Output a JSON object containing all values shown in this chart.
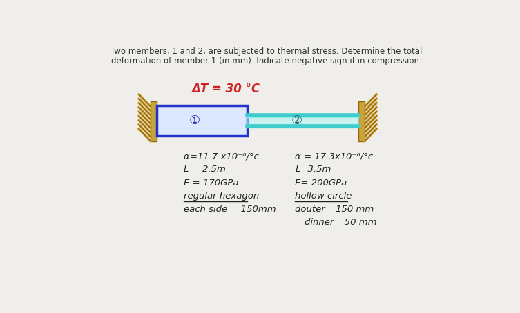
{
  "title_line1": "Two members, 1 and 2, are subjected to thermal stress. Determine the total",
  "title_line2": "deformation of member 1 (in mm). Indicate negative sign if in compression.",
  "delta_T_label": "ΔT = 30 °C",
  "member1_label": "①",
  "member2_label": "②",
  "alpha1_label": "α=11.7 x10⁻⁶/°c",
  "alpha2_label": "α = 17.3x10⁻⁶/°c",
  "L1_label": "L = 2.5m",
  "L2_label": "L=3.5m",
  "E1_label": "E = 170GPa",
  "E2_label": "E= 200GPa",
  "shape1_label": "regular hexagon",
  "shape2_label": "hollow circle",
  "dim1_label": "each side = 150mm",
  "dim2a_label": "douter= 150 mm",
  "dim2b_label": "dinner= 50 mm",
  "bg_color": "#f0eeea",
  "wall_color": "#c8a440",
  "member1_fill": "#e8f0ff",
  "member1_border": "#2233cc",
  "member2_fill": "#70e8e8",
  "member2_border": "#40cccc",
  "fig_bg": "#f0eeea",
  "text_color": "#222222",
  "title_color": "#333333",
  "deltaT_color": "#cc2222"
}
